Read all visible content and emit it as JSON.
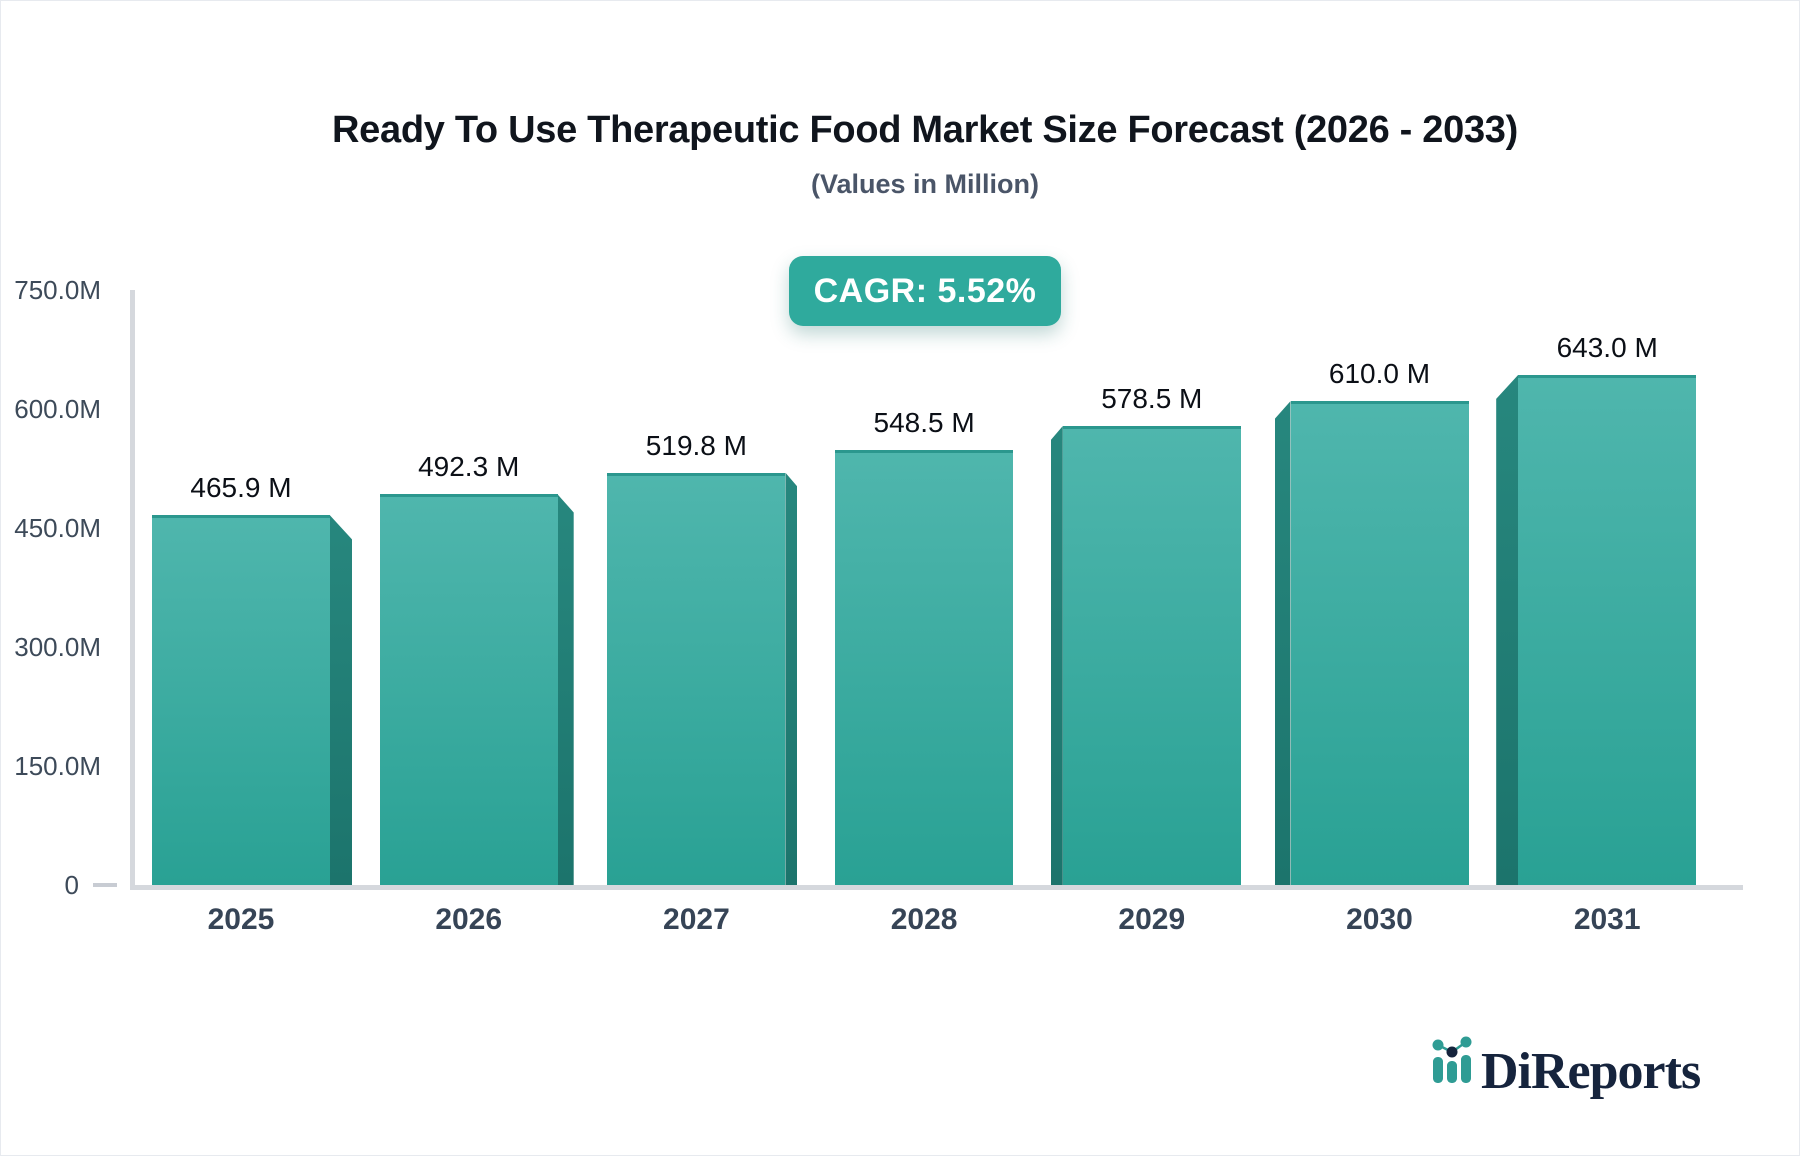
{
  "title": "Ready To Use Therapeutic Food Market Size Forecast (2026 - 2033)",
  "subtitle": "(Values in Million)",
  "badge": {
    "label": "CAGR: 5.52%"
  },
  "chart_data": {
    "type": "bar",
    "categories": [
      "2025",
      "2026",
      "2027",
      "2028",
      "2029",
      "2030",
      "2031"
    ],
    "values": [
      465.9,
      492.3,
      519.8,
      548.5,
      578.5,
      610.0,
      643.0
    ],
    "value_labels": [
      "465.9 M",
      "492.3 M",
      "519.8 M",
      "548.5 M",
      "578.5 M",
      "610.0 M",
      "643.0 M"
    ],
    "title": "Ready To Use Therapeutic Food Market Size Forecast (2026 - 2033)",
    "subtitle": "(Values in Million)",
    "xlabel": "",
    "ylabel": "",
    "ylim": [
      0,
      750
    ],
    "yticks": [
      {
        "label": "750.0M",
        "value": 750
      },
      {
        "label": "600.0M",
        "value": 600
      },
      {
        "label": "450.0M",
        "value": 450
      },
      {
        "label": "300.0M",
        "value": 300
      },
      {
        "label": "150.0M",
        "value": 150
      },
      {
        "label": "0",
        "value": 0
      }
    ],
    "grid": false,
    "legend": false,
    "bar_style": "3d-extruded",
    "annotations": [
      "CAGR: 5.52%"
    ]
  },
  "colors": {
    "accent": "#2faa9d",
    "bar_top": "#4fb6ad",
    "bar_bottom": "#29a194",
    "bar_edge": "#2b978e",
    "bar_side_light": "#27877e",
    "bar_side_dark": "#1c746c",
    "axis_line": "#d5d8dd",
    "tick_text": "#3d4a59",
    "year_text": "#364456",
    "value_text": "#0b0f16",
    "title_text": "#10151d",
    "subtitle_text": "#4a5568",
    "logo_navy": "#16243d",
    "logo_teal": "#2f9c94"
  },
  "logo": {
    "text": "DiReports",
    "icon": "mini-bar-chart-icon"
  }
}
